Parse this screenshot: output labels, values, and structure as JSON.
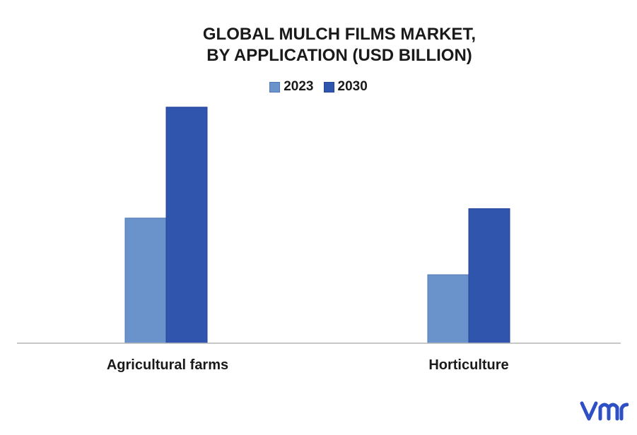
{
  "chart_data": {
    "type": "bar",
    "title_lines": [
      "GLOBAL MULCH FILMS MARKET,",
      "BY APPLICATION (USD BILLION)"
    ],
    "categories": [
      "Agricultural farms",
      "Horticulture"
    ],
    "series": [
      {
        "name": "2023",
        "color": "#6a93cb",
        "values": [
          5.3,
          2.9
        ]
      },
      {
        "name": "2030",
        "color": "#2f55ad",
        "values": [
          10.0,
          5.7
        ]
      }
    ],
    "ylim": [
      0,
      10.5
    ],
    "grid": false,
    "legend_position": "top-center"
  },
  "logo": {
    "icon": "vmr-logo-icon",
    "color": "#2f4fc4"
  }
}
